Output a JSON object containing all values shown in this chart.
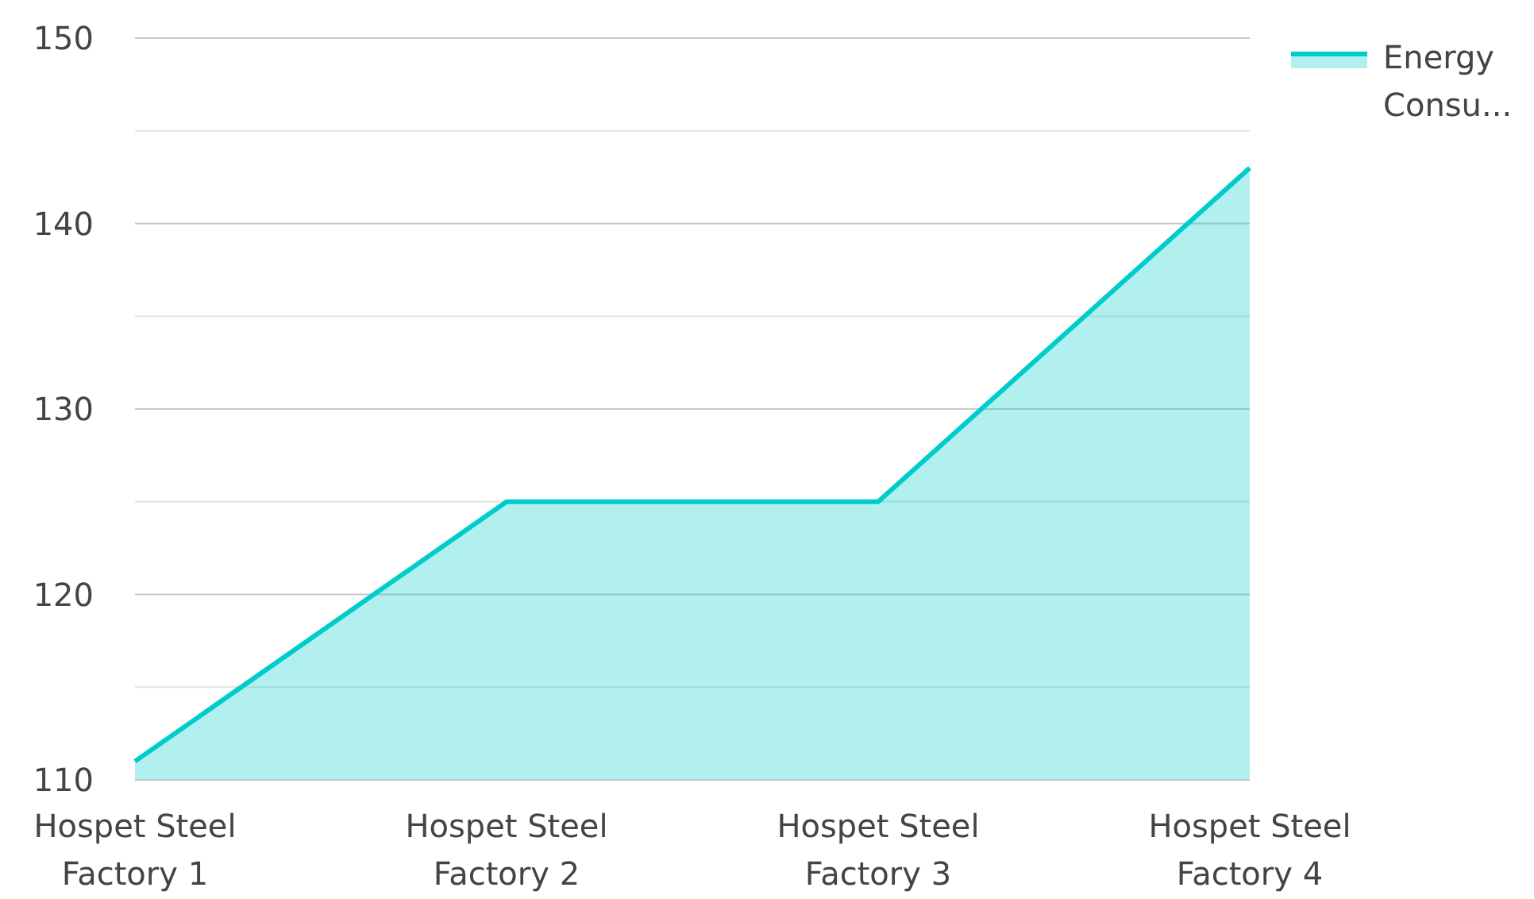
{
  "chart_data": {
    "type": "area",
    "categories": [
      "Hospet Steel Factory 1",
      "Hospet Steel Factory 2",
      "Hospet Steel Factory 3",
      "Hospet Steel Factory 4"
    ],
    "series": [
      {
        "name": "Energy Consu...",
        "color": "#00cccc",
        "values": [
          111,
          125,
          125,
          143
        ]
      }
    ],
    "ylim": [
      110,
      150
    ],
    "yticks": [
      110,
      {
        "value": 115,
        "label": null
      },
      120,
      {
        "value": 125,
        "label": null
      },
      130,
      {
        "value": 135,
        "label": null
      },
      140,
      {
        "value": 145,
        "label": null
      },
      150
    ],
    "grid": "y",
    "legend": "top right"
  }
}
